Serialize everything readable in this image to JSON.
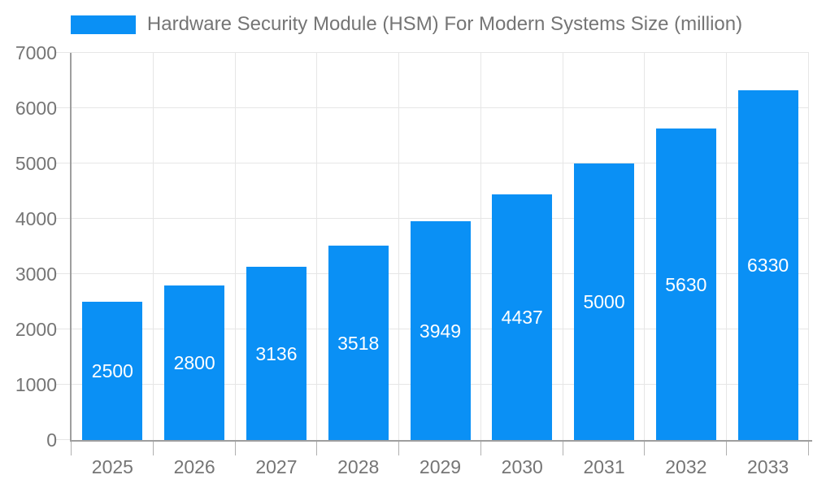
{
  "chart_data": {
    "type": "bar",
    "title": "Hardware Security Module (HSM) For Modern Systems Size (million)",
    "categories": [
      "2025",
      "2026",
      "2027",
      "2028",
      "2029",
      "2030",
      "2031",
      "2032",
      "2033"
    ],
    "values": [
      2500,
      2800,
      3136,
      3518,
      3949,
      4437,
      5000,
      5630,
      6330
    ],
    "y_ticks": [
      0,
      1000,
      2000,
      3000,
      4000,
      5000,
      6000,
      7000
    ],
    "ylim": [
      0,
      7000
    ],
    "xlabel": "",
    "ylabel": "",
    "legend_position": "top-center",
    "grid": true,
    "bar_label_position": "inside-center"
  },
  "colors": {
    "bar": "#0a90f5",
    "grid": "#e6e6e6",
    "axis": "#9e9e9e",
    "x_tick": "#b0b0b0",
    "text": "#757575",
    "bar_label": "#ffffff",
    "background": "#ffffff"
  }
}
